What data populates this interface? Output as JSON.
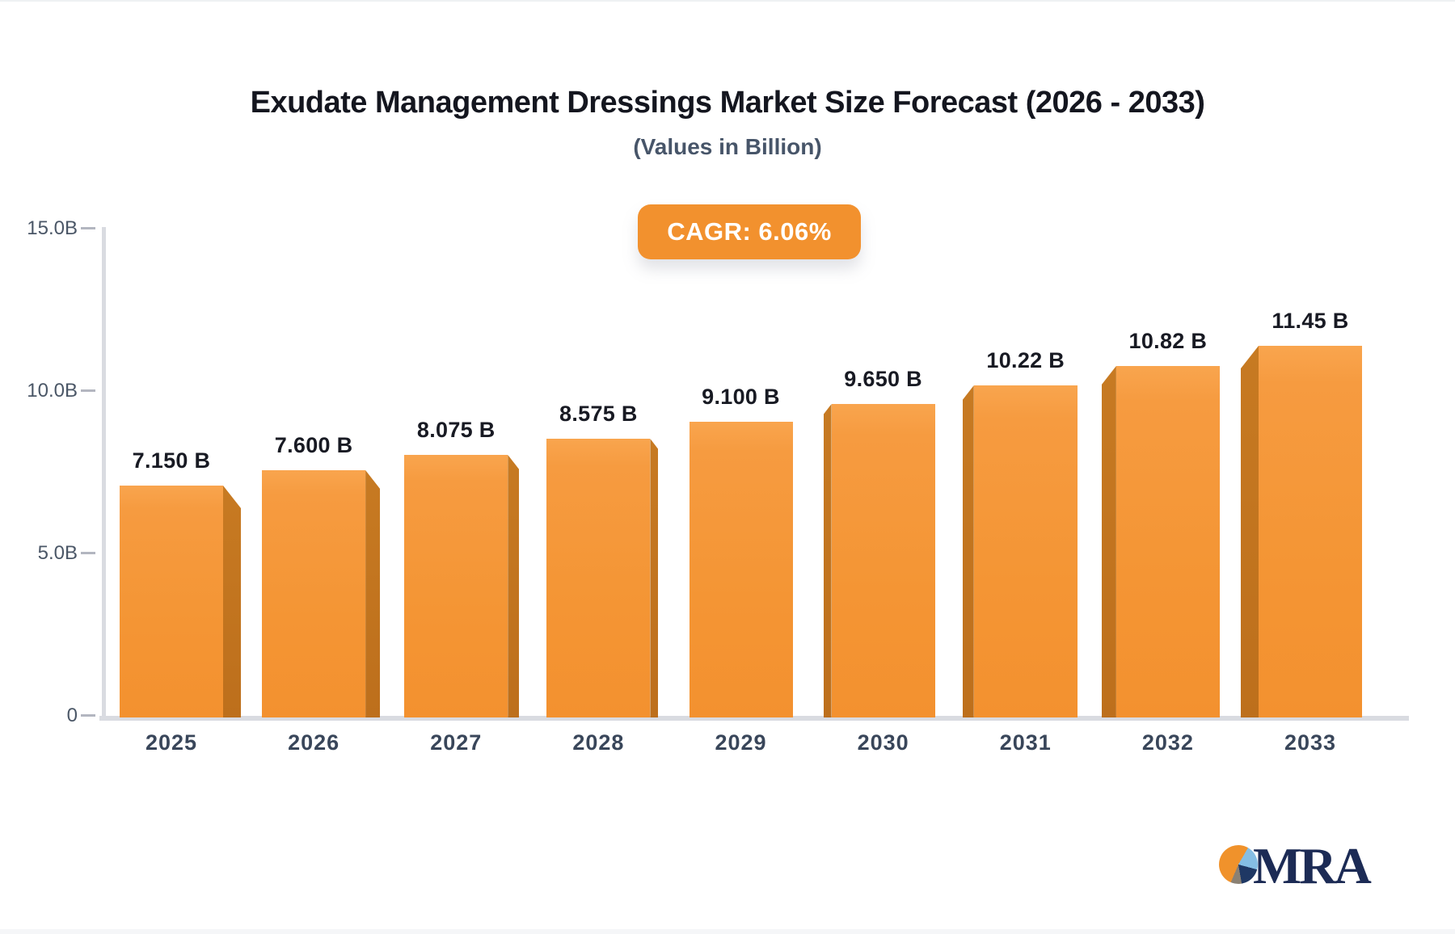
{
  "header": {
    "title": "Exudate Management Dressings Market Size Forecast (2026 - 2033)",
    "subtitle": "(Values in Billion)"
  },
  "badge": {
    "label": "CAGR: 6.06%",
    "background_color": "#F2912E",
    "text_color": "#ffffff"
  },
  "chart_data": {
    "type": "bar",
    "title": "Exudate Management Dressings Market Size Forecast (2026 - 2033)",
    "subtitle": "(Values in Billion)",
    "cagr": "6.06%",
    "categories": [
      "2025",
      "2026",
      "2027",
      "2028",
      "2029",
      "2030",
      "2031",
      "2032",
      "2033"
    ],
    "values": [
      7.15,
      7.6,
      8.075,
      8.575,
      9.1,
      9.65,
      10.22,
      10.82,
      11.45
    ],
    "value_labels": [
      "7.150 B",
      "7.600 B",
      "8.075 B",
      "8.575 B",
      "9.100 B",
      "9.650 B",
      "10.22 B",
      "10.82 B",
      "11.45 B"
    ],
    "xlabel": "",
    "ylabel": "",
    "ylim": [
      0,
      15
    ],
    "y_ticks": [
      {
        "label": "0",
        "value": 0
      },
      {
        "label": "5.0B",
        "value": 5
      },
      {
        "label": "10.0B",
        "value": 10
      },
      {
        "label": "15.0B",
        "value": 15
      }
    ],
    "grid": false,
    "legend": false,
    "bar_color": "#F69A3E",
    "bar_side_color": "#BD6F1C",
    "axis_color": "#D9DBE1"
  },
  "logo": {
    "text": "MRA",
    "pie_colors": {
      "orange": "#F0922B",
      "light_blue": "#85BEE4",
      "navy": "#1F3864",
      "grey": "#8B8173"
    },
    "text_color": "#1C2B55"
  }
}
